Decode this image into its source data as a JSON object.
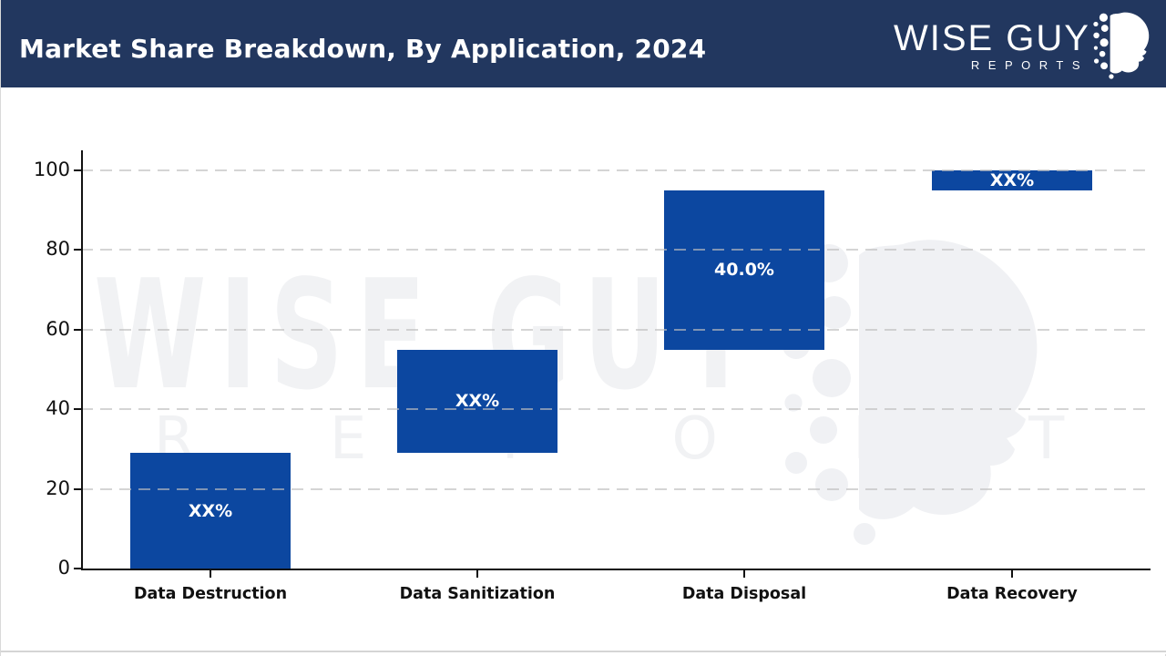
{
  "header": {
    "title": "Market Share Breakdown, By Application, 2024",
    "bg_color": "#22375f",
    "logo": {
      "line1": "WISE GUY",
      "line2": "REPORTS"
    }
  },
  "watermark": {
    "line1": "WISE GUY",
    "line2": "R E P O R T S"
  },
  "chart_data": {
    "type": "bar",
    "variant": "waterfall",
    "title": "Market Share Breakdown, By Application, 2024",
    "categories": [
      "Data Destruction",
      "Data Sanitization",
      "Data Disposal",
      "Data Recovery"
    ],
    "segments": [
      {
        "category": "Data Destruction",
        "start": 0,
        "end": 29,
        "label": "XX%"
      },
      {
        "category": "Data Sanitization",
        "start": 29,
        "end": 55,
        "label": "XX%"
      },
      {
        "category": "Data Disposal",
        "start": 55,
        "end": 95,
        "label": "40.0%"
      },
      {
        "category": "Data Recovery",
        "start": 95,
        "end": 100,
        "label": "XX%"
      }
    ],
    "y_ticks": [
      0,
      20,
      40,
      60,
      80,
      100
    ],
    "ylim": [
      0,
      105
    ],
    "xlabel": "",
    "ylabel": "",
    "grid": "horizontal-dashed",
    "legend": "none",
    "bar_color": "#0c47a0",
    "bar_label_color": "#ffffff",
    "grid_color": "rgba(190,190,190,0.65)",
    "axis_color": "#111111"
  }
}
